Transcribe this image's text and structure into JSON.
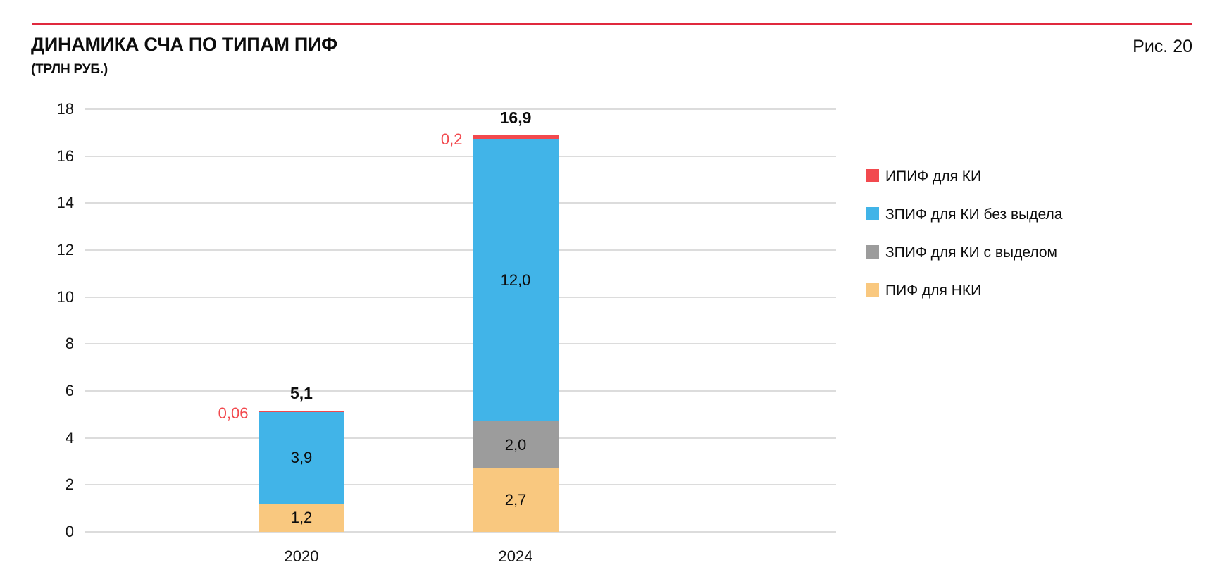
{
  "page": {
    "background": "#ffffff",
    "accent_rule_color": "#e0293e"
  },
  "header": {
    "title": "ДИНАМИКА СЧА ПО ТИПАМ ПИФ",
    "subtitle": "(ТРЛН РУБ.)",
    "figure_label": "Рис. 20"
  },
  "chart_data": {
    "type": "bar",
    "stacked": true,
    "title": "Динамика СЧА по типам ПИФ",
    "unit_label": "трлн руб.",
    "categories": [
      "2020",
      "2024"
    ],
    "series": [
      {
        "name": "ПИФ для НКИ",
        "color": "#f9c87f",
        "values": [
          1.2,
          2.7
        ],
        "value_labels": [
          "1,2",
          "2,7"
        ],
        "label_style": "inside"
      },
      {
        "name": "ЗПИФ для КИ с выделом",
        "color": "#9c9c9c",
        "values": [
          0,
          2.0
        ],
        "value_labels": [
          "",
          "2,0"
        ],
        "label_style": "inside"
      },
      {
        "name": "ЗПИФ для КИ без выдела",
        "color": "#41b4e8",
        "values": [
          3.9,
          12.0
        ],
        "value_labels": [
          "3,9",
          "12,0"
        ],
        "label_style": "inside"
      },
      {
        "name": "ИПИФ для КИ",
        "color": "#f2494e",
        "values": [
          0.06,
          0.2
        ],
        "value_labels": [
          "0,06",
          "0,2"
        ],
        "label_style": "outside-left"
      }
    ],
    "totals": {
      "values": [
        5.1,
        16.9
      ],
      "labels": [
        "5,1",
        "16,9"
      ]
    },
    "y_axis": {
      "min": 0,
      "max": 18,
      "step": 2,
      "tick_labels": [
        "0",
        "2",
        "4",
        "6",
        "8",
        "10",
        "12",
        "14",
        "16",
        "18"
      ]
    },
    "grid": true,
    "legend_position": "right",
    "legend": [
      {
        "label": "ИПИФ для КИ",
        "color": "#f2494e"
      },
      {
        "label": "ЗПИФ для КИ без выдела",
        "color": "#41b4e8"
      },
      {
        "label": "ЗПИФ для КИ с выделом",
        "color": "#9c9c9c"
      },
      {
        "label": "ПИФ для НКИ",
        "color": "#f9c87f"
      }
    ]
  }
}
